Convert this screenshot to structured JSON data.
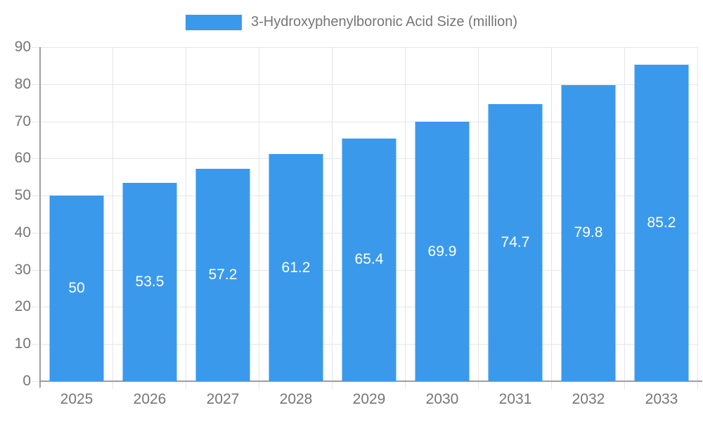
{
  "legend": {
    "label": "3-Hydroxyphenylboronic Acid Size (million)"
  },
  "colors": {
    "bar": "#3B99EC",
    "grid": "#E6E6E6",
    "axis": "#9E9E9E",
    "text": "#757575",
    "bar_label": "#FFFFFF",
    "background": "#FFFFFF"
  },
  "chart_data": {
    "type": "bar",
    "title": "3-Hydroxyphenylboronic Acid Size (million)",
    "categories": [
      "2025",
      "2026",
      "2027",
      "2028",
      "2029",
      "2030",
      "2031",
      "2032",
      "2033"
    ],
    "series": [
      {
        "name": "3-Hydroxyphenylboronic Acid Size (million)",
        "values": [
          50,
          53.5,
          57.2,
          61.2,
          65.4,
          69.9,
          74.7,
          79.8,
          85.2
        ]
      }
    ],
    "value_labels": [
      "50",
      "53.5",
      "57.2",
      "61.2",
      "65.4",
      "69.9",
      "74.7",
      "79.8",
      "85.2"
    ],
    "xlabel": "",
    "ylabel": "",
    "ylim": [
      0,
      90
    ],
    "yticks": [
      0,
      10,
      20,
      30,
      40,
      50,
      60,
      70,
      80,
      90
    ],
    "grid": true,
    "legend_position": "top-center",
    "value_label_position": "inside-center"
  }
}
